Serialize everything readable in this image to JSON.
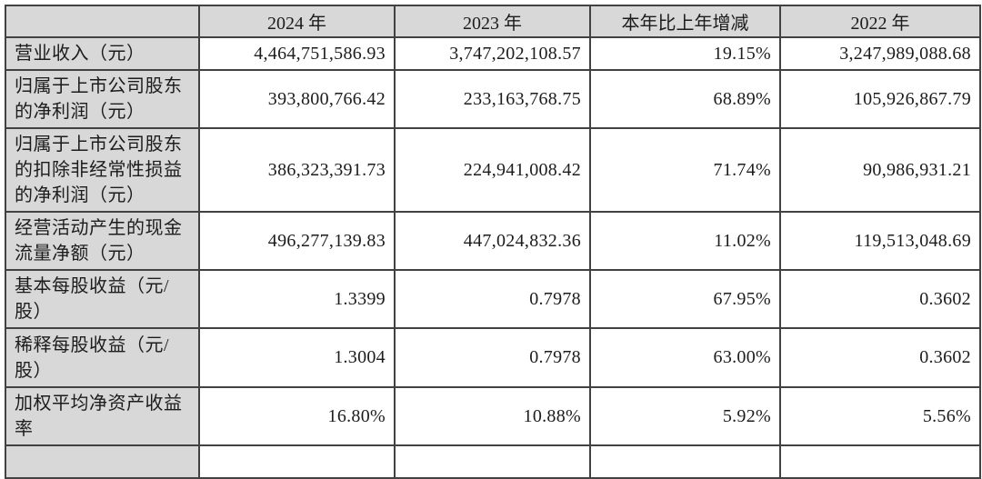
{
  "style": {
    "header_bg": "#d8d8d8",
    "label_bg": "#d8d8d8",
    "border_color": "#424242",
    "text_color": "#1c1c1c",
    "page_bg": "#ffffff"
  },
  "table": {
    "header": [
      "",
      "2024 年",
      "2023 年",
      "本年比上年增减",
      "2022 年"
    ],
    "rows": [
      {
        "label": "营业收入（元）",
        "values": [
          "4,464,751,586.93",
          "3,747,202,108.57",
          "19.15%",
          "3,247,989,088.68"
        ]
      },
      {
        "label": "归属于上市公司股东\n的净利润（元）",
        "values": [
          "393,800,766.42",
          "233,163,768.75",
          "68.89%",
          "105,926,867.79"
        ]
      },
      {
        "label": "归属于上市公司股东\n的扣除非经常性损益\n的净利润（元）",
        "values": [
          "386,323,391.73",
          "224,941,008.42",
          "71.74%",
          "90,986,931.21"
        ]
      },
      {
        "label": "经营活动产生的现金\n流量净额（元）",
        "values": [
          "496,277,139.83",
          "447,024,832.36",
          "11.02%",
          "119,513,048.69"
        ]
      },
      {
        "label": "基本每股收益（元/\n股）",
        "values": [
          "1.3399",
          "0.7978",
          "67.95%",
          "0.3602"
        ]
      },
      {
        "label": "稀释每股收益（元/\n股）",
        "values": [
          "1.3004",
          "0.7978",
          "63.00%",
          "0.3602"
        ]
      },
      {
        "label": "加权平均净资产收益\n率",
        "values": [
          "16.80%",
          "10.88%",
          "5.92%",
          "5.56%"
        ]
      }
    ],
    "truncated_row": {
      "label": "",
      "values": [
        "",
        "",
        "",
        ""
      ]
    }
  }
}
